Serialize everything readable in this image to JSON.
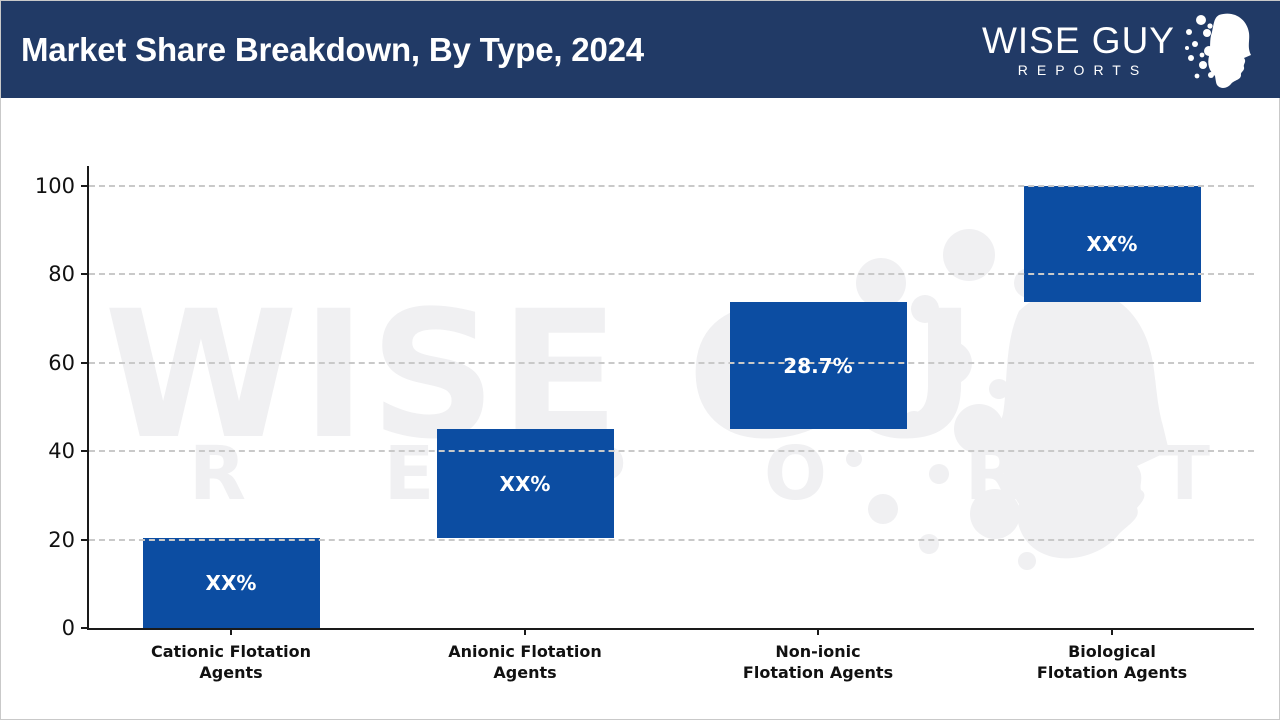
{
  "header": {
    "title": "Market Share Breakdown, By Type, 2024",
    "logo": {
      "line1": "WISE GUY",
      "line2": "REPORTS"
    }
  },
  "watermark": {
    "line1": "WISE GU",
    "line2": "R E P O R T S"
  },
  "colors": {
    "header_bg": "#213a66",
    "bar": "#0c4da2",
    "bar_label": "#ffffff",
    "gridline": "#c9c9c9",
    "axis": "#1a1a1a",
    "watermark": "#f0f0f2",
    "border": "#c9c9c9"
  },
  "chart_data": {
    "type": "bar",
    "subtype": "floating-waterfall",
    "title": "Market Share Breakdown, By Type, 2024",
    "xlabel": "",
    "ylabel": "",
    "ylim": [
      0,
      100
    ],
    "yticks": [
      0,
      20,
      40,
      60,
      80,
      100
    ],
    "grid": "horizontal-dashed",
    "legend": "none",
    "bar_color": "#0c4da2",
    "segments": [
      {
        "category": "Cationic Flotation Agents",
        "category_lines": [
          "Cationic Flotation",
          "Agents"
        ],
        "start": 0,
        "end": 20.3,
        "value": 20.3,
        "label": "XX%"
      },
      {
        "category": "Anionic Flotation Agents",
        "category_lines": [
          "Anionic Flotation",
          "Agents"
        ],
        "start": 20.3,
        "end": 45.0,
        "value": 24.7,
        "label": "XX%"
      },
      {
        "category": "Non-ionic Flotation Agents",
        "category_lines": [
          "Non-ionic",
          "Flotation Agents"
        ],
        "start": 45.0,
        "end": 73.7,
        "value": 28.7,
        "label": "28.7%"
      },
      {
        "category": "Biological Flotation Agents",
        "category_lines": [
          "Biological",
          "Flotation Agents"
        ],
        "start": 73.7,
        "end": 100.0,
        "value": 26.3,
        "label": "XX%"
      }
    ]
  }
}
